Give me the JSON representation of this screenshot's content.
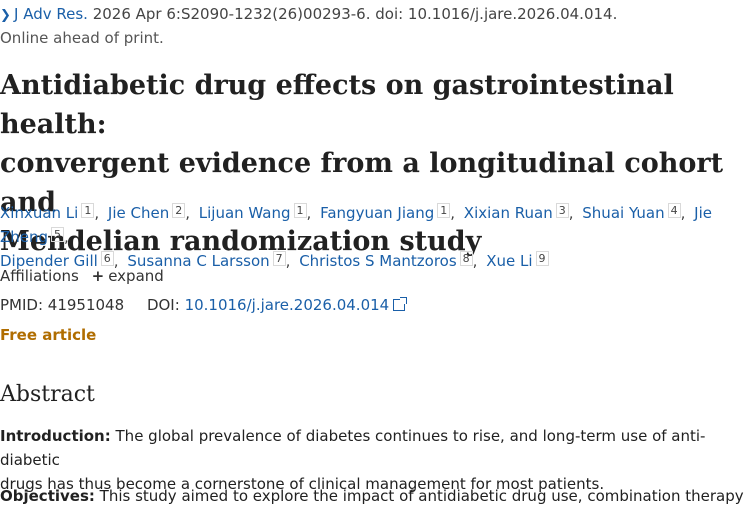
{
  "citation": {
    "journal": "J Adv Res.",
    "details": "2026 Apr 6:S2090-1232(26)00293-6. doi: 10.1016/j.jare.2026.04.014."
  },
  "online_status": "Online ahead of print.",
  "title_lines": [
    "Antidiabetic drug effects on gastrointestinal health:",
    "convergent evidence from a longitudinal cohort and",
    "Mendelian randomization study"
  ],
  "authors": [
    {
      "name": "Xinxuan Li",
      "aff": "1"
    },
    {
      "name": "Jie Chen",
      "aff": "2"
    },
    {
      "name": "Lijuan Wang",
      "aff": "1"
    },
    {
      "name": "Fangyuan Jiang",
      "aff": "1"
    },
    {
      "name": "Xixian Ruan",
      "aff": "3"
    },
    {
      "name": "Shuai Yuan",
      "aff": "4"
    },
    {
      "name": "Jie Zheng",
      "aff": "5"
    },
    {
      "name": "Dipender Gill",
      "aff": "6"
    },
    {
      "name": "Susanna C Larsson",
      "aff": "7"
    },
    {
      "name": "Christos S Mantzoros",
      "aff": "8"
    },
    {
      "name": "Xue Li",
      "aff": "9"
    }
  ],
  "affiliations": {
    "label": "Affiliations",
    "expand_label": "expand"
  },
  "ids": {
    "pmid_label": "PMID:",
    "pmid": "41951048",
    "doi_label": "DOI:",
    "doi": "10.1016/j.jare.2026.04.014"
  },
  "free_article": "Free article",
  "abstract": {
    "heading": "Abstract",
    "intro_label": "Introduction:",
    "intro_line1": " The global prevalence of diabetes continues to rise, and long-term use of anti-diabetic",
    "intro_line2": "drugs has thus become a cornerstone of clinical management for most patients.",
    "objectives_label": "Objectives:",
    "objectives_text": " This study aimed to explore the impact of antidiabetic drug use, combination therapy"
  }
}
